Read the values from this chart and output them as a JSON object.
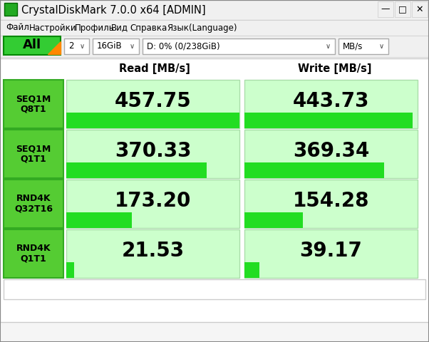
{
  "title": "CrystalDiskMark 7.0.0 x64 [ADMIN]",
  "menu_items": [
    "Файл",
    "Настройки",
    "Профиль",
    "Вид",
    "Справка",
    "Язык(Language)"
  ],
  "toolbar_items": [
    "2",
    "16GiB",
    "D: 0% (0/238GiB)",
    "MB/s"
  ],
  "all_label": "All",
  "col_headers": [
    "Read [MB/s]",
    "Write [MB/s]"
  ],
  "rows": [
    {
      "label": "SEQ1M\nQ8T1",
      "read": "457.75",
      "write": "443.73",
      "read_pct": 1.0,
      "write_pct": 0.97
    },
    {
      "label": "SEQ1M\nQ1T1",
      "read": "370.33",
      "write": "369.34",
      "read_pct": 0.81,
      "write_pct": 0.808
    },
    {
      "label": "RND4K\nQ32T16",
      "read": "173.20",
      "write": "154.28",
      "read_pct": 0.379,
      "write_pct": 0.337
    },
    {
      "label": "RND4K\nQ1T1",
      "read": "21.53",
      "write": "39.17",
      "read_pct": 0.047,
      "write_pct": 0.086
    }
  ],
  "bg_color": "#f0f0f0",
  "title_bar_color": "#1a1a2e",
  "title_text_color": "#ffffff",
  "green_dark": "#00aa00",
  "green_light": "#aaffaa",
  "cell_bg": "#d4f5d4",
  "label_cell_bg": "#66cc44",
  "label_text_color": "#000000",
  "value_text_color": "#000000",
  "header_color": "#ffffff",
  "border_color": "#888888",
  "window_bg": "#f5f5f5"
}
